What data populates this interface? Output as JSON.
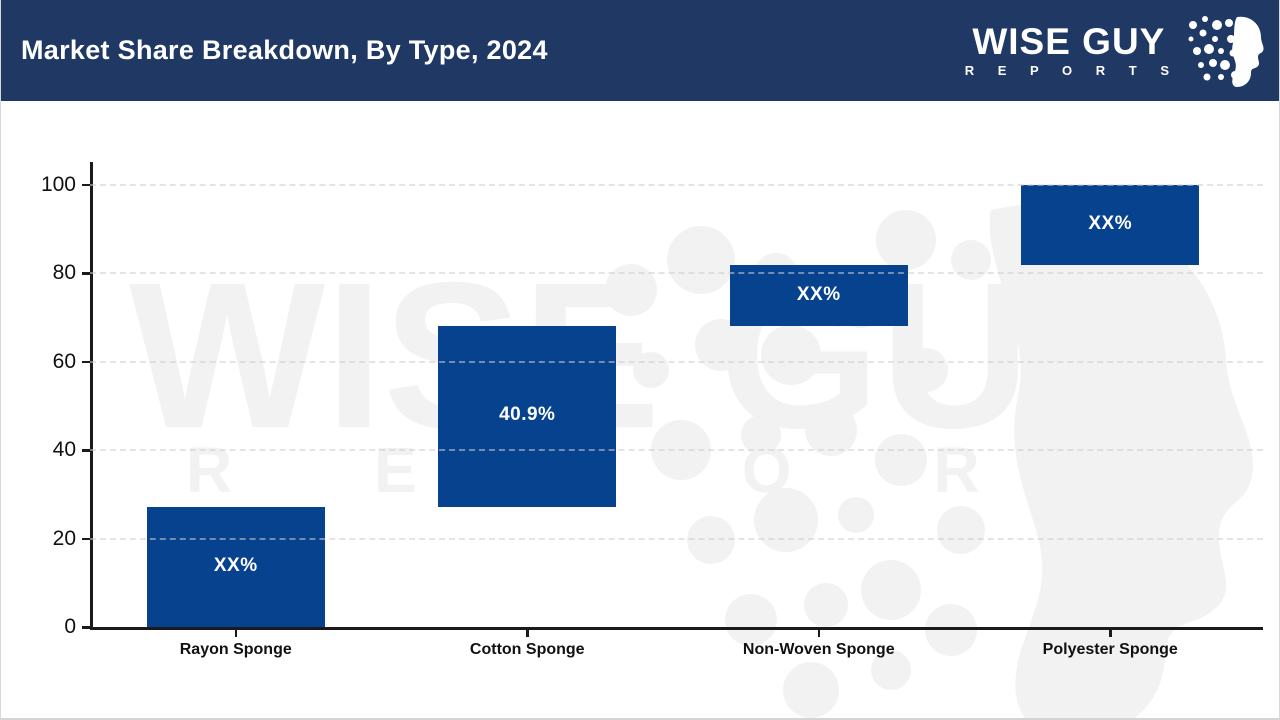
{
  "header": {
    "title": "Market Share Breakdown, By Type, 2024",
    "bg_color": "#1f3864",
    "logo": {
      "line1": "WISE GUY",
      "line2": "R E P O R T S",
      "face_icon": "dotted-head-profile"
    }
  },
  "watermark": {
    "line1": "WISE GUY",
    "line2": "R E P O R T S",
    "face_icon": "dotted-head-profile",
    "color": "#f2f2f2"
  },
  "chart_data": {
    "type": "bar",
    "subtype": "waterfall-floating-bars",
    "title": "Market Share Breakdown, By Type, 2024",
    "categories": [
      "Rayon Sponge",
      "Cotton Sponge",
      "Non-Woven Sponge",
      "Polyester Sponge"
    ],
    "values": [
      27.2,
      40.9,
      13.6,
      18.3
    ],
    "bases": [
      0,
      27.2,
      68.1,
      81.7
    ],
    "bar_labels": [
      "XX%",
      "40.9%",
      "XX%",
      "XX%"
    ],
    "xlabel": "",
    "ylabel": "",
    "yticks": [
      0,
      20,
      40,
      60,
      80,
      100
    ],
    "ylim": [
      0,
      105
    ],
    "grid": "dashed-horizontal",
    "legend": "none",
    "bar_color": "#07428f",
    "label_color": "#ffffff",
    "axis_color": "#1a1a1a"
  }
}
